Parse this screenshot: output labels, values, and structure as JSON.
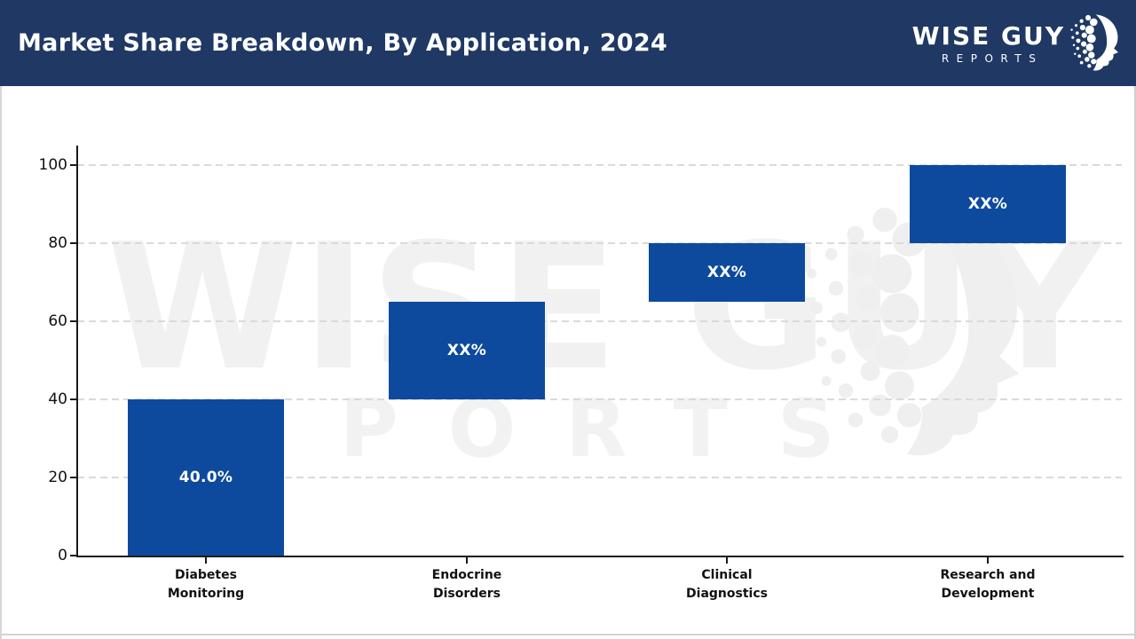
{
  "header": {
    "title": "Market Share Breakdown, By Application, 2024",
    "logo": {
      "line1": "WISE GUY",
      "line2": "REPORTS"
    }
  },
  "watermark": {
    "line1": "WISE GUY",
    "line2": "REPORTS"
  },
  "chart_data": {
    "type": "bar",
    "subtype": "waterfall",
    "title": "Market Share Breakdown, By Application, 2024",
    "categories": [
      [
        "Diabetes",
        "Monitoring"
      ],
      [
        "Endocrine",
        "Disorders"
      ],
      [
        "Clinical",
        "Diagnostics"
      ],
      [
        "Research and",
        "Development"
      ]
    ],
    "segments": [
      {
        "category": "Diabetes Monitoring",
        "start": 0,
        "end": 40,
        "value": 40,
        "value_label": "40.0%"
      },
      {
        "category": "Endocrine Disorders",
        "start": 40,
        "end": 65,
        "value": 25,
        "value_label": "XX%"
      },
      {
        "category": "Clinical Diagnostics",
        "start": 65,
        "end": 80,
        "value": 15,
        "value_label": "XX%"
      },
      {
        "category": "Research and Development",
        "start": 80,
        "end": 100,
        "value": 20,
        "value_label": "XX%"
      }
    ],
    "yticks": [
      0,
      20,
      40,
      60,
      80,
      100
    ],
    "ylim": [
      0,
      100
    ],
    "xlabel": "",
    "ylabel": "",
    "grid": "horizontal-dashed",
    "legend": "none",
    "bar_color": "#0d4a9e",
    "label_color": "#ffffff"
  }
}
